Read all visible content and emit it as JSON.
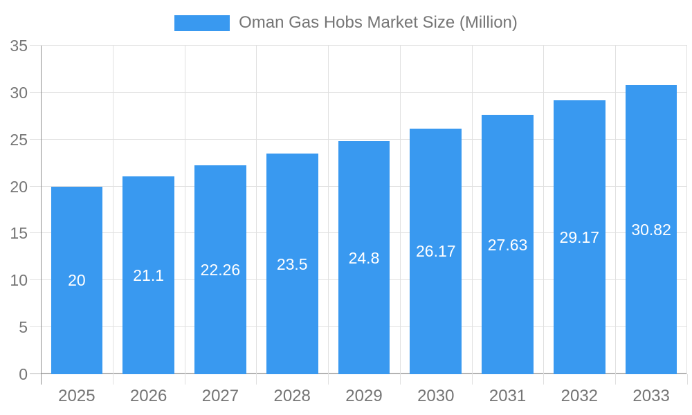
{
  "legend": {
    "swatch_color": "#3999f0"
  },
  "chart_data": {
    "type": "bar",
    "title": "Oman Gas Hobs Market Size (Million)",
    "categories": [
      "2025",
      "2026",
      "2027",
      "2028",
      "2029",
      "2030",
      "2031",
      "2032",
      "2033"
    ],
    "values": [
      20,
      21.1,
      22.26,
      23.5,
      24.8,
      26.17,
      27.63,
      29.17,
      30.82
    ],
    "value_labels": [
      "20",
      "21.1",
      "22.26",
      "23.5",
      "24.8",
      "26.17",
      "27.63",
      "29.17",
      "30.82"
    ],
    "xlabel": "",
    "ylabel": "",
    "ylim": [
      0,
      35
    ],
    "yticks": [
      0,
      5,
      10,
      15,
      20,
      25,
      30,
      35
    ],
    "grid": true,
    "legend_position": "top-center",
    "colors": {
      "bar": "#3999f0",
      "label_text": "#757575",
      "value_text": "#ffffff",
      "gridline": "#e0e0e0",
      "baseline": "#b3b3b3",
      "axis_line": "#909090"
    }
  }
}
